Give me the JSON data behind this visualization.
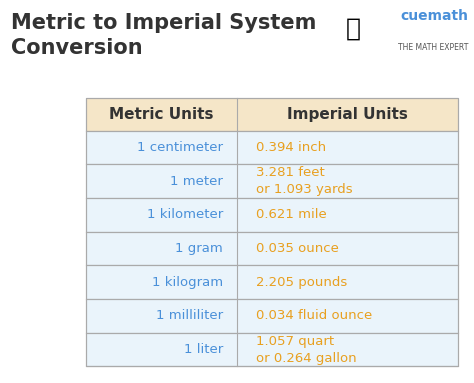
{
  "title": "Metric to Imperial System\nConversion",
  "title_color": "#333333",
  "title_fontsize": 15,
  "bg_color": "#ffffff",
  "table_bg_header": "#f5e6c8",
  "table_bg_row": "#eaf4fb",
  "table_border_color": "#aaaaaa",
  "header": [
    "Metric Units",
    "Imperial Units"
  ],
  "metric_col": [
    "1 centimeter",
    "1 meter",
    "1 kilometer",
    "1 gram",
    "1 kilogram",
    "1 milliliter",
    "1 liter"
  ],
  "imperial_col": [
    "0.394 inch",
    "3.281 feet\nor 1.093 yards",
    "0.621 mile",
    "0.035 ounce",
    "2.205 pounds",
    "0.034 fluid ounce",
    "1.057 quart\nor 0.264 gallon"
  ],
  "metric_color": "#4a90d9",
  "imperial_color": "#e8a020",
  "header_color": "#333333",
  "header_fontsize": 11,
  "cell_fontsize": 9.5,
  "cuemath_color": "#4a90d9",
  "subtext_color": "#555555"
}
